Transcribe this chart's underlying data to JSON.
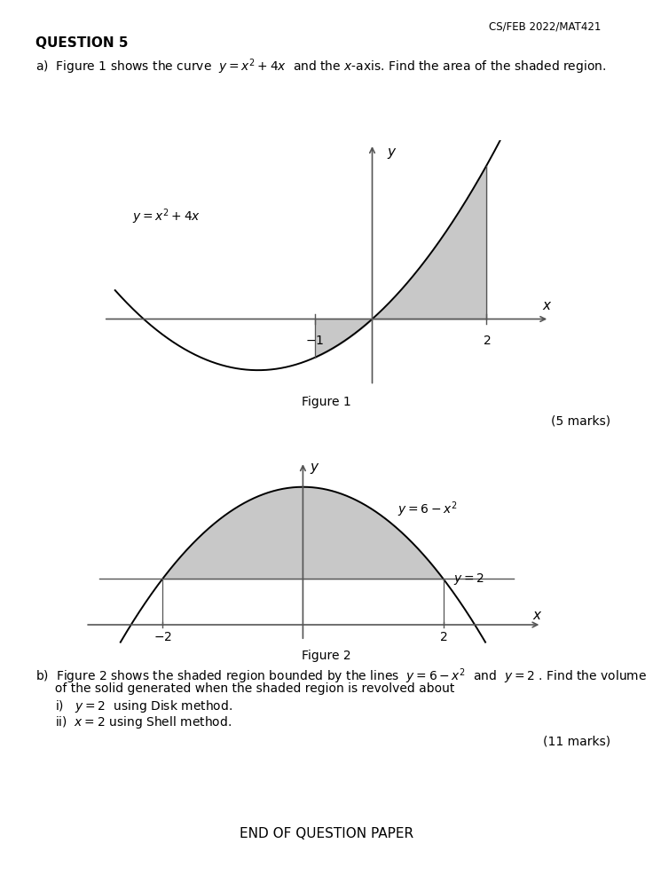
{
  "header": "CS/FEB 2022/MAT421",
  "question": "QUESTION 5",
  "figure1_caption": "Figure 1",
  "figure1_marks": "(5 marks)",
  "figure2_caption": "Figure 2",
  "figure2_marks": "(11 marks)",
  "end_text": "END OF QUESTION PAPER",
  "shaded_color": "#c8c8c8",
  "curve_color": "#000000",
  "axis_color": "#555555",
  "background_color": "#ffffff",
  "fig1_xlim": [
    -4.8,
    3.2
  ],
  "fig1_ylim": [
    -5.5,
    14.0
  ],
  "fig2_xlim": [
    -3.2,
    3.5
  ],
  "fig2_ylim": [
    -0.8,
    7.2
  ]
}
